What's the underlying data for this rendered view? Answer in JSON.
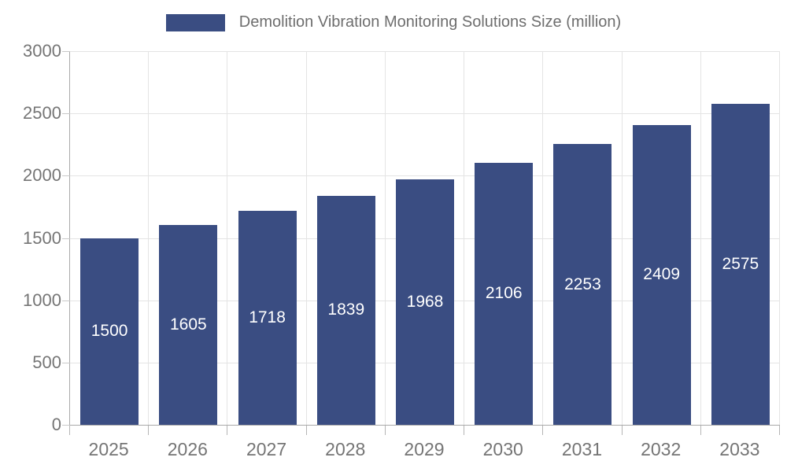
{
  "chart_data": {
    "type": "bar",
    "title": "Demolition Vibration Monitoring Solutions Size (million)",
    "categories": [
      "2025",
      "2026",
      "2027",
      "2028",
      "2029",
      "2030",
      "2031",
      "2032",
      "2033"
    ],
    "values": [
      1500,
      1605,
      1718,
      1839,
      1968,
      2106,
      2253,
      2409,
      2575
    ],
    "value_labels": [
      "1500",
      "1605",
      "1718",
      "1839",
      "1968",
      "2106",
      "2253",
      "2409",
      "2575"
    ],
    "xlabel": "",
    "ylabel": "",
    "ylim": [
      0,
      3000
    ],
    "y_ticks": [
      0,
      500,
      1000,
      1500,
      2000,
      2500,
      3000
    ],
    "y_tick_labels": [
      "0",
      "500",
      "1000",
      "1500",
      "2000",
      "2500",
      "3000"
    ],
    "grid": true,
    "legend_position": "top",
    "colors": {
      "bar": "#3A4D82",
      "value_label": "#ffffff",
      "gridline": "#e4e4e4",
      "axis_line": "#a9a9a9",
      "tick_label": "#757575",
      "title_text": "#6e6e6e",
      "background": "#ffffff"
    }
  }
}
